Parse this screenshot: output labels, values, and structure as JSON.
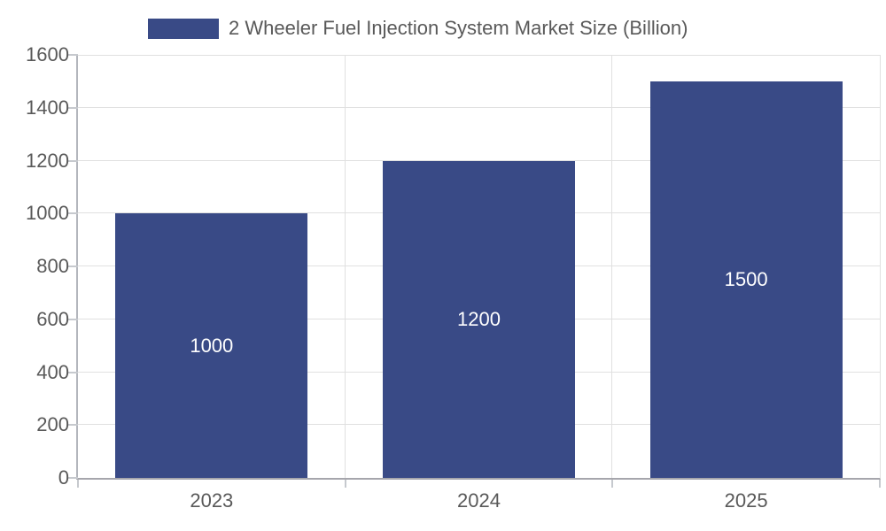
{
  "legend": {
    "label": "2 Wheeler Fuel Injection System Market Size (Billion)"
  },
  "chart_data": {
    "type": "bar",
    "title": "2 Wheeler Fuel Injection System Market Size (Billion)",
    "categories": [
      "2023",
      "2024",
      "2025"
    ],
    "values": [
      1000,
      1200,
      1500
    ],
    "bar_labels": [
      "1000",
      "1200",
      "1500"
    ],
    "xlabel": "",
    "ylabel": "",
    "ylim": [
      0,
      1600
    ],
    "ytick_step": 200,
    "grid": true,
    "legend_position": "top"
  },
  "colors": {
    "bar": "#394A86",
    "bar_label": "#FFFFFF",
    "axis_text": "#595959",
    "gridline": "#E0E0E0",
    "x_axis_line": "#A6A6AC",
    "y_axis_line": "#B3B6BC",
    "tick": "#C6C9CE",
    "background": "#FFFFFF"
  }
}
